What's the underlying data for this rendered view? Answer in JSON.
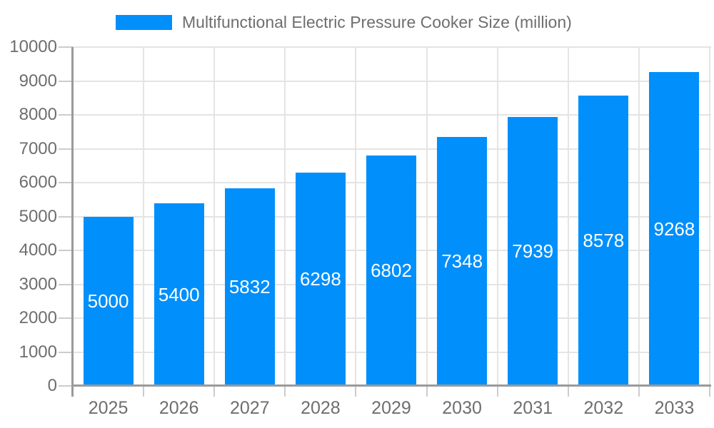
{
  "chart_data": {
    "type": "bar",
    "title": "",
    "legend_label": "Multifunctional Electric Pressure Cooker Size (million)",
    "legend_position": "top-center",
    "categories": [
      "2025",
      "2026",
      "2027",
      "2028",
      "2029",
      "2030",
      "2031",
      "2032",
      "2033"
    ],
    "series": [
      {
        "name": "Multifunctional Electric Pressure Cooker Size (million)",
        "values": [
          5000,
          5400,
          5832,
          6298,
          6802,
          7348,
          7939,
          8578,
          9268
        ]
      }
    ],
    "value_labels": [
      "5000",
      "5400",
      "5832",
      "6298",
      "6802",
      "7348",
      "7939",
      "8578",
      "9268"
    ],
    "xlabel": "",
    "ylabel": "",
    "ylim": [
      0,
      10000
    ],
    "ytick_step": 1000,
    "yticks": [
      0,
      1000,
      2000,
      3000,
      4000,
      5000,
      6000,
      7000,
      8000,
      9000,
      10000
    ],
    "grid": true,
    "colors": {
      "bar": "#008FFB",
      "value_label": "#ffffff",
      "axis_text": "#6e6e6e",
      "grid_line": "#e4e4e4",
      "tick_line": "#cccccc",
      "axis_line": "#9a9a9a",
      "background": "#ffffff"
    }
  }
}
